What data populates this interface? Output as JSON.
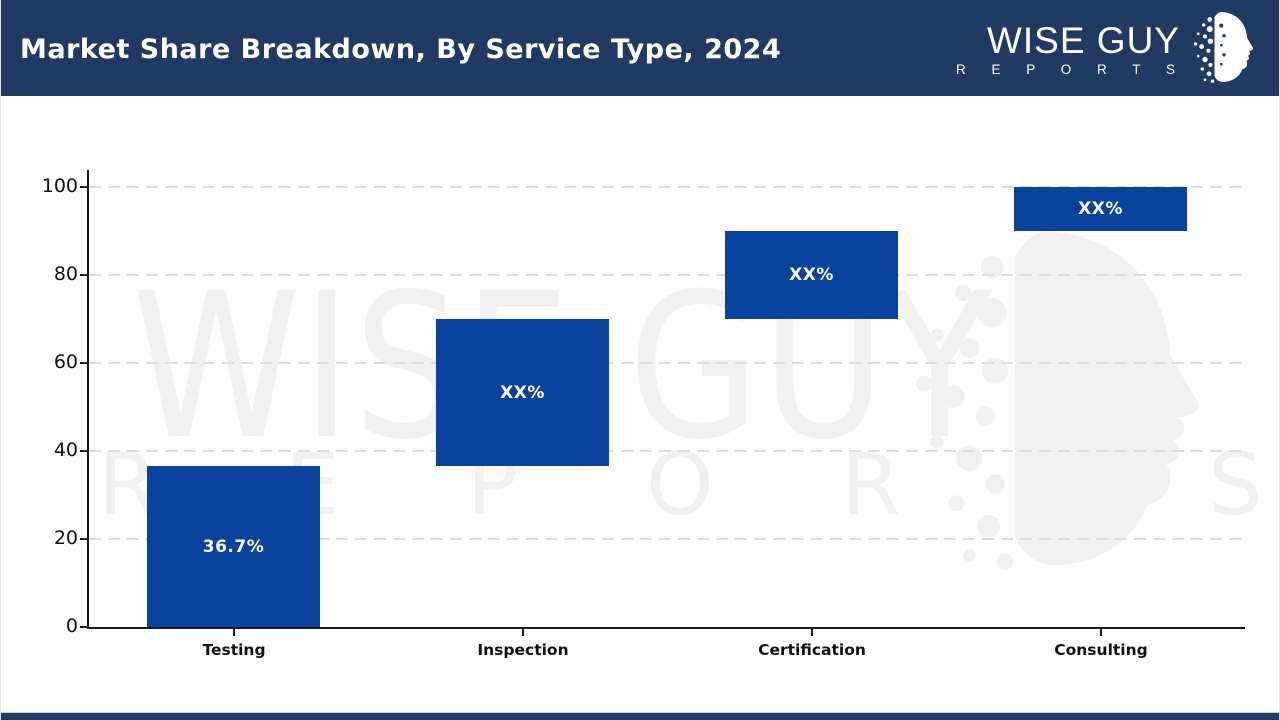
{
  "header": {
    "title": "Market Share Breakdown, By Service Type, 2024",
    "bg_color": "#203a64",
    "logo": {
      "line1": "WISE GUY",
      "line2": "R E P O R T S"
    }
  },
  "watermark": {
    "line1": "WISE GUY",
    "line2": "R E P O R T S"
  },
  "chart_data": {
    "type": "bar",
    "subtype": "floating-cascade-bars",
    "title": "Market Share Breakdown, By Service Type, 2024",
    "categories": [
      "Testing",
      "Inspection",
      "Certification",
      "Consulting"
    ],
    "segments": [
      {
        "category": "Testing",
        "start": 0,
        "end": 36.7,
        "label": "36.7%"
      },
      {
        "category": "Inspection",
        "start": 36.7,
        "end": 70,
        "label": "XX%"
      },
      {
        "category": "Certification",
        "start": 70,
        "end": 90,
        "label": "XX%"
      },
      {
        "category": "Consulting",
        "start": 90,
        "end": 100,
        "label": "XX%"
      }
    ],
    "xlabel": "",
    "ylabel": "",
    "ylim": [
      0,
      100
    ],
    "yticks": [
      0,
      20,
      40,
      60,
      80,
      100
    ],
    "grid": {
      "axis": "y",
      "style": "dashed",
      "color": "#dcdcdc"
    },
    "legend": null,
    "bar_color": "#08429c",
    "bar_label_color": "#ffffff",
    "axis_color": "#1a1a1a"
  },
  "footer": {
    "bg_color": "#203a64"
  }
}
